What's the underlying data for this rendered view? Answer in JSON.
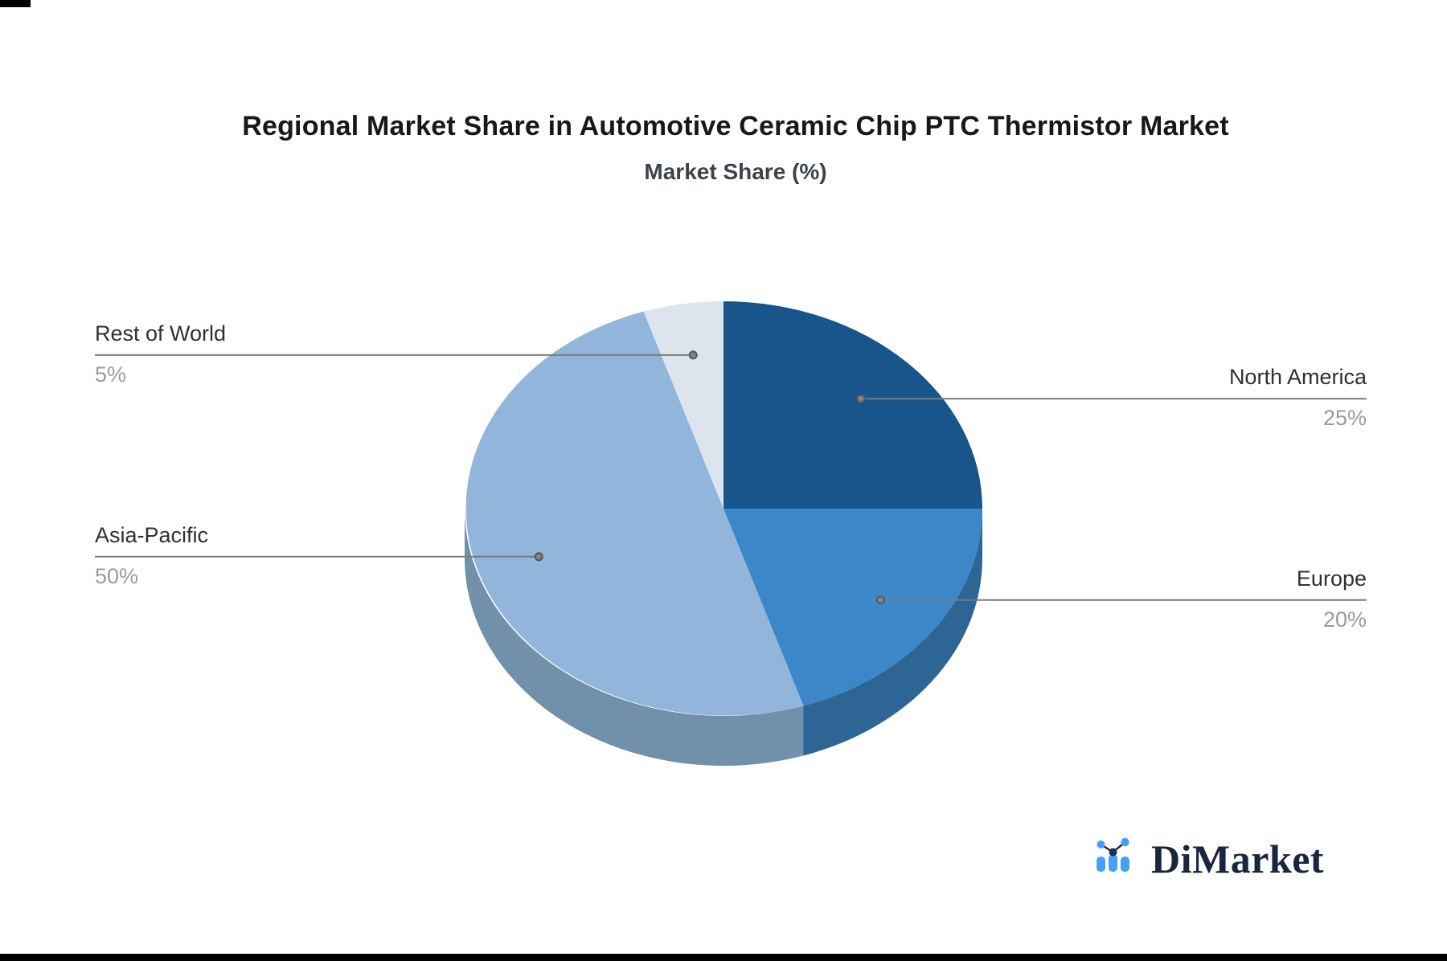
{
  "header": {
    "title": "Regional Market Share in Automotive Ceramic Chip PTC Thermistor Market",
    "subtitle": "Market Share (%)"
  },
  "chart_data": {
    "type": "pie",
    "style": "3d",
    "title": "Regional Market Share in Automotive Ceramic Chip PTC Thermistor Market",
    "subtitle": "Market Share (%)",
    "unit": "%",
    "start_angle": "top",
    "direction": "clockwise",
    "legend_position": "none",
    "categories": [
      "North America",
      "Europe",
      "Asia-Pacific",
      "Rest of World"
    ],
    "values": [
      25,
      20,
      50,
      5
    ],
    "slices": [
      {
        "label": "North America",
        "value": 25,
        "value_label": "25%",
        "label_side": "right",
        "color": "#17558B",
        "depth_color": "#10406B"
      },
      {
        "label": "Europe",
        "value": 20,
        "value_label": "20%",
        "label_side": "right",
        "color": "#3C87C7",
        "depth_color": "#2D6594"
      },
      {
        "label": "Asia-Pacific",
        "value": 50,
        "value_label": "50%",
        "label_side": "left",
        "color": "#92B5DB",
        "depth_color": "#7190A9"
      },
      {
        "label": "Rest of World",
        "value": 5,
        "value_label": "5%",
        "label_side": "left",
        "color": "#DCE5EE",
        "depth_color": "#B9C6D6"
      }
    ],
    "connector_color": "#7a7a7a",
    "connector_dot_fill": "#848484",
    "connector_dot_stroke": "#575757",
    "label_color": "#303030",
    "value_color": "#9b9b9b"
  },
  "logo": {
    "text": "DiMarket",
    "icon": "bar-line-chart-icon",
    "text_color": "#18263f",
    "accent_color": "#47A0F7",
    "navy_color": "#1C2C4D"
  }
}
